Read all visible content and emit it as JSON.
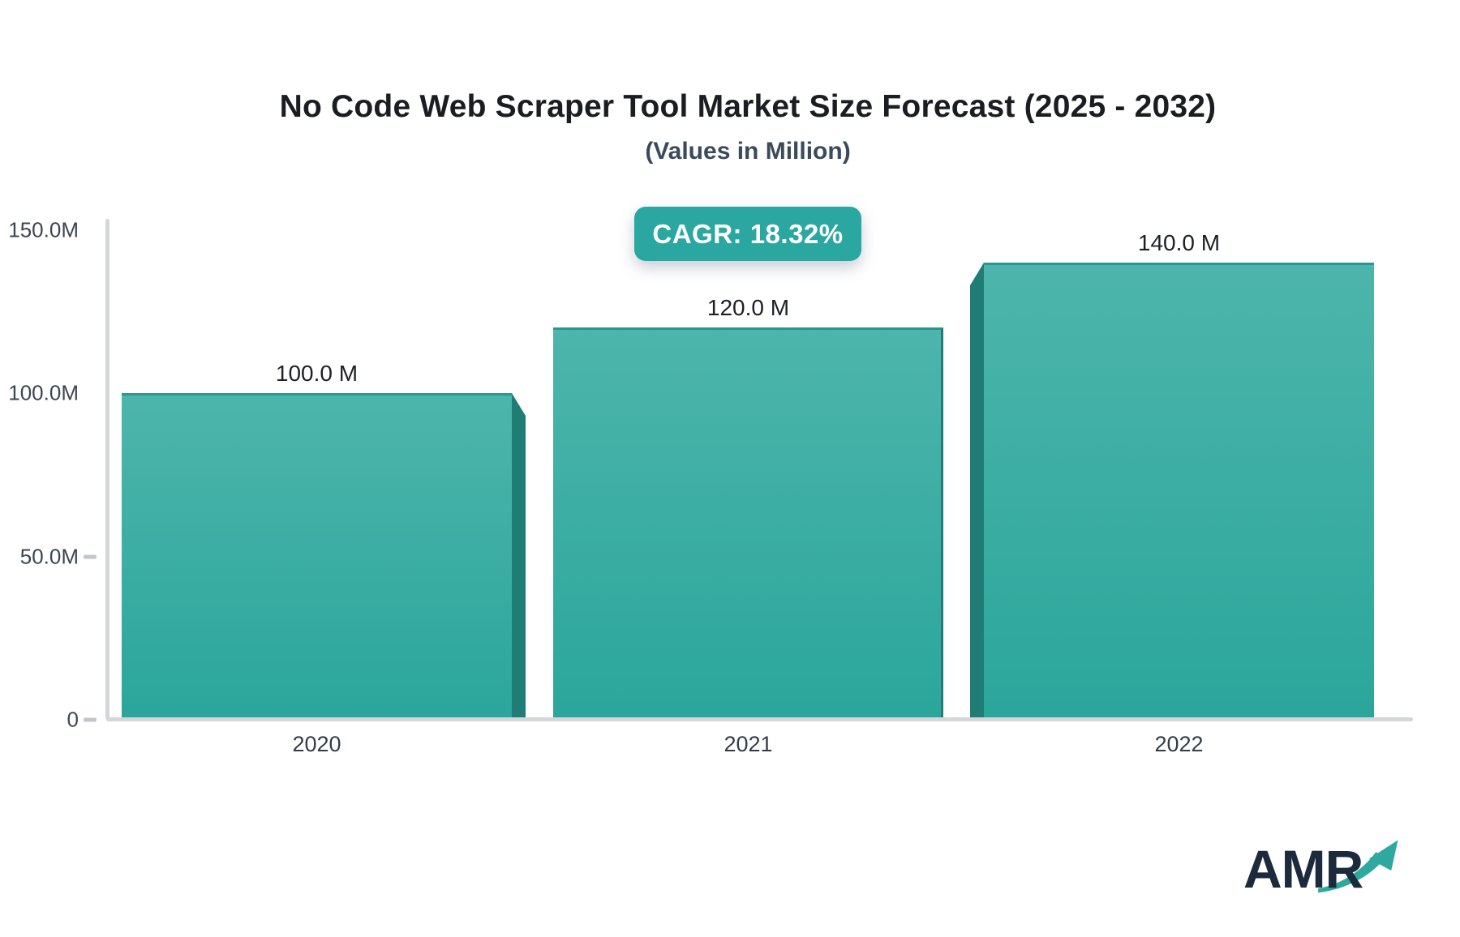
{
  "header": {
    "title": "No Code Web Scraper Tool Market Size Forecast (2025 - 2032)",
    "subtitle": "(Values in Million)"
  },
  "badge": {
    "label": "CAGR: 18.32%"
  },
  "chart_data": {
    "type": "bar",
    "title": "No Code Web Scraper Tool Market Size Forecast (2025 - 2032)",
    "subtitle": "(Values in Million)",
    "categories": [
      "2020",
      "2021",
      "2022"
    ],
    "values": [
      100,
      120,
      140
    ],
    "value_labels": [
      "100.0 M",
      "120.0 M",
      "140.0 M"
    ],
    "annotation": "CAGR: 18.32%",
    "ylim": [
      0,
      150
    ],
    "yticks": [
      {
        "value": 0,
        "label": "0",
        "dash": true
      },
      {
        "value": 50,
        "label": "50.0M",
        "dash": true
      },
      {
        "value": 100,
        "label": "100.0M",
        "dash": false
      },
      {
        "value": 150,
        "label": "150.0M",
        "dash": false
      }
    ],
    "grid": false,
    "legend": "none",
    "bar_3d_side": [
      "right",
      "none",
      "left"
    ]
  },
  "colors": {
    "bar_top": "#4db5ab",
    "bar_bottom": "#2ba69b",
    "bar_edge": "#28988e",
    "bar_side_3d": "#1f7d75",
    "badge_bg": "#2ba7a1",
    "axis_line": "#d3d6db",
    "tick_dash": "#c2c6cc",
    "logo_arrow": "#2fa99f"
  },
  "logo": {
    "text": "AMR"
  }
}
